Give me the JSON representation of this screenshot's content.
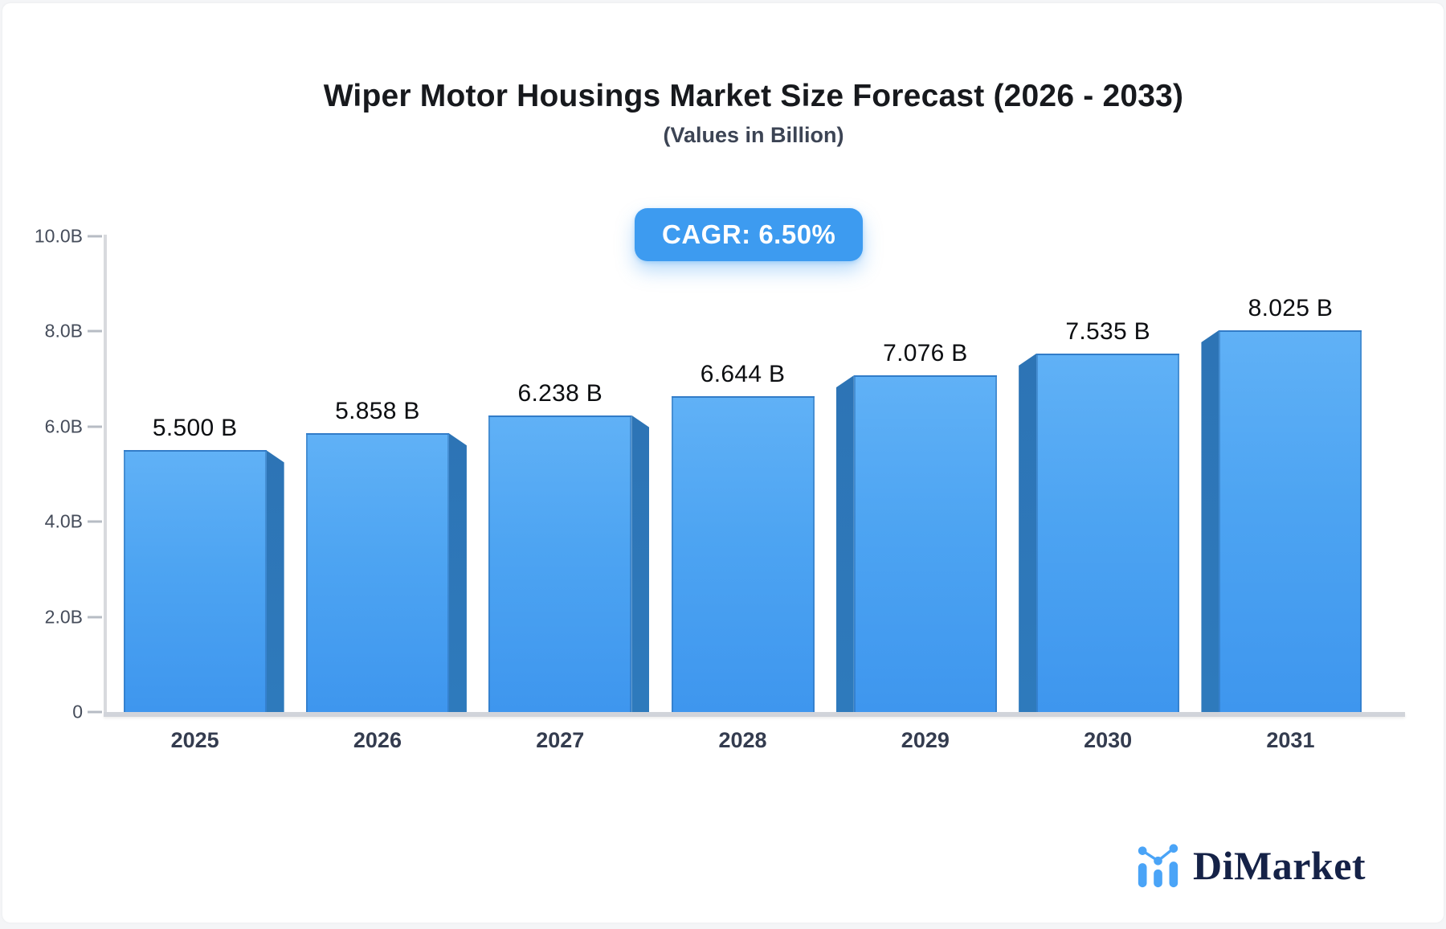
{
  "header": {
    "title": "Wiper Motor Housings Market Size Forecast (2026 - 2033)",
    "subtitle": "(Values in Billion)"
  },
  "badge": {
    "label": "CAGR: 6.50%",
    "background": "#3d9bf0",
    "text_color": "#ffffff"
  },
  "chart_data": {
    "type": "bar",
    "title": "Wiper Motor Housings Market Size Forecast (2026 - 2033)",
    "subtitle": "(Values in Billion)",
    "categories": [
      "2025",
      "2026",
      "2027",
      "2028",
      "2029",
      "2030",
      "2031"
    ],
    "values": [
      5.5,
      5.858,
      6.238,
      6.644,
      7.076,
      7.535,
      8.025
    ],
    "value_labels": [
      "5.500 B",
      "5.858 B",
      "6.238 B",
      "6.644 B",
      "7.076 B",
      "7.535 B",
      "8.025 B"
    ],
    "unit": "Billion",
    "y_tick_labels": [
      "10.0B",
      "8.0B",
      "6.0B",
      "4.0B",
      "2.0B",
      "0"
    ],
    "y_tick_values": [
      10,
      8,
      6,
      4,
      2,
      0
    ],
    "ylim": [
      0,
      10
    ],
    "xlabel": "",
    "ylabel": "",
    "grid": false,
    "legend": null,
    "style_3d": "perspective, side faces toward center bar",
    "bar_face_color": "#4da4f2",
    "bar_side_color": "#2e7abc"
  },
  "logo": {
    "text": "DiMarket",
    "icon": "bar-line-chart-icon",
    "icon_color": "#4aa4f7",
    "text_color": "#152247"
  }
}
